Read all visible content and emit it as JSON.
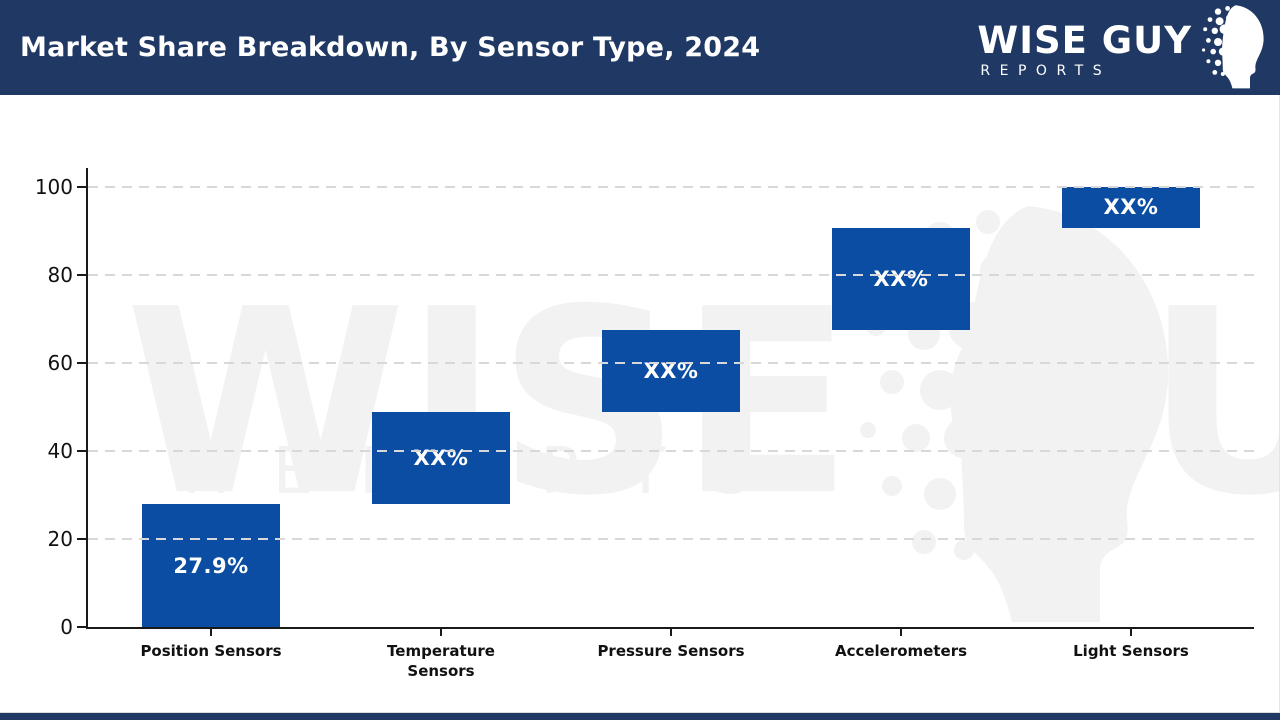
{
  "header": {
    "title": "Market Share Breakdown, By Sensor Type, 2024",
    "logo": {
      "name": "WISE GUY",
      "sub": "REPORTS"
    }
  },
  "watermark": {
    "line1": "WISE GUY",
    "line2": "REPORTS"
  },
  "chart_data": {
    "type": "bar",
    "subtype": "waterfall",
    "title": "Market Share Breakdown, By Sensor Type, 2024",
    "categories": [
      "Position Sensors",
      "Temperature Sensors",
      "Pressure Sensors",
      "Accelerometers",
      "Light Sensors"
    ],
    "segments": [
      {
        "category": "Position Sensors",
        "start": 0,
        "end": 27.9,
        "label": "27.9%"
      },
      {
        "category": "Temperature Sensors",
        "start": 27.9,
        "end": 48.9,
        "label": "XX%"
      },
      {
        "category": "Pressure Sensors",
        "start": 48.9,
        "end": 67.5,
        "label": "XX%"
      },
      {
        "category": "Accelerometers",
        "start": 67.5,
        "end": 90.7,
        "label": "XX%"
      },
      {
        "category": "Light Sensors",
        "start": 90.7,
        "end": 100,
        "label": "XX%"
      }
    ],
    "yticks": [
      0,
      20,
      40,
      60,
      80,
      100
    ],
    "ylim": [
      0,
      105
    ],
    "xlabel": "",
    "ylabel": "",
    "grid": "horizontal-dashed",
    "legend": "none",
    "bar_color": "#0b4da2",
    "bar_label_color": "#ffffff"
  },
  "colors": {
    "header_bg": "#1f3864",
    "footer_bg": "#1f3864",
    "bar": "#0b4da2",
    "axis": "#1a1a1a",
    "grid": "#d8d8d8",
    "watermark": "#f2f2f2"
  }
}
